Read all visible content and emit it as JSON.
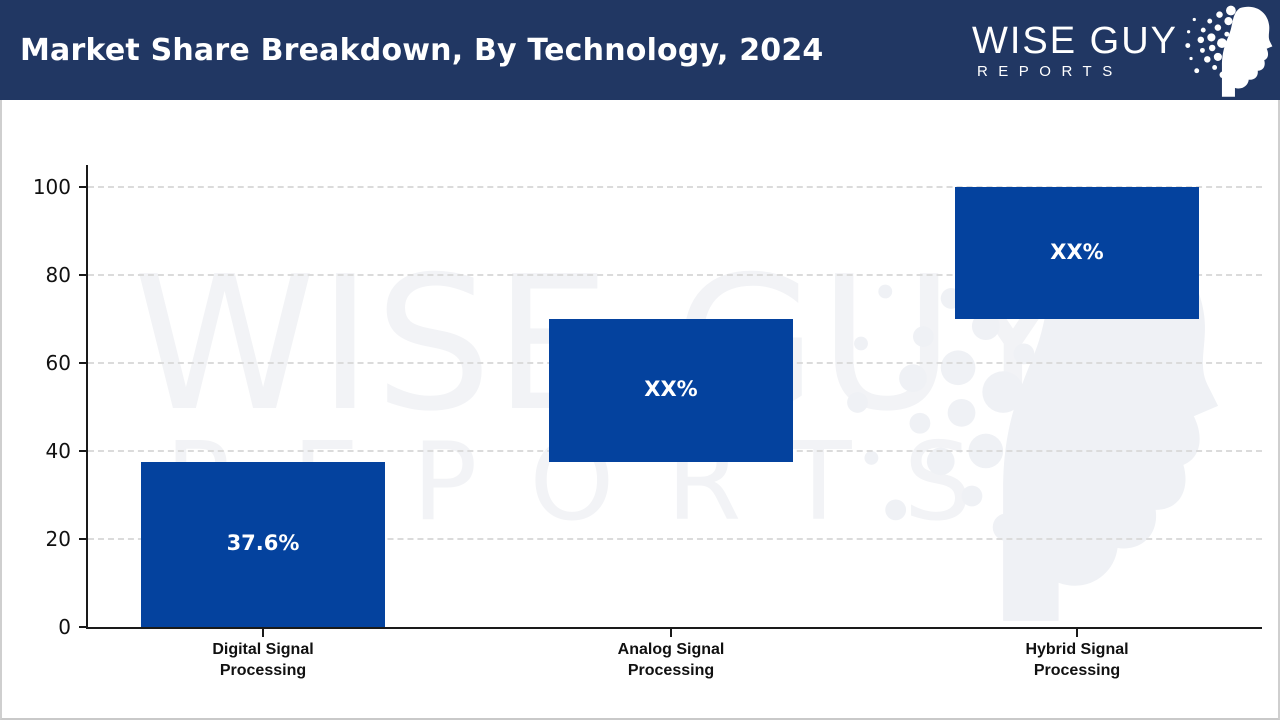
{
  "header": {
    "title": "Market Share Breakdown, By Technology, 2024",
    "logo_line1": "WISE GUY",
    "logo_line2": "REPORTS"
  },
  "watermark": {
    "line1": "WISE GUY",
    "line2": "REPORTS"
  },
  "colors": {
    "header_bg": "#213763",
    "bar_fill": "#04429e",
    "bar_label": "#ffffff",
    "axis": "#1a1a1a",
    "gridline": "#dbdbdb",
    "watermark": "#f2f3f6"
  },
  "chart_data": {
    "type": "bar",
    "subtype": "waterfall",
    "title": "Market Share Breakdown, By Technology, 2024",
    "xlabel": "",
    "ylabel": "",
    "ylim": [
      0,
      105
    ],
    "y_ticks": [
      0,
      20,
      40,
      60,
      80,
      100
    ],
    "grid": true,
    "legend_position": "none",
    "categories": [
      "Digital Signal Processing",
      "Analog Signal Processing",
      "Hybrid Signal Processing"
    ],
    "bars": [
      {
        "category": "Digital Signal Processing",
        "label_lines": [
          "Digital Signal",
          "Processing"
        ],
        "start": 0,
        "end": 37.6,
        "value_label": "37.6%"
      },
      {
        "category": "Analog Signal Processing",
        "label_lines": [
          "Analog Signal",
          "Processing"
        ],
        "start": 37.6,
        "end": 70,
        "value_label": "XX%"
      },
      {
        "category": "Hybrid Signal Processing",
        "label_lines": [
          "Hybrid Signal",
          "Processing"
        ],
        "start": 70,
        "end": 100,
        "value_label": "XX%"
      }
    ]
  }
}
